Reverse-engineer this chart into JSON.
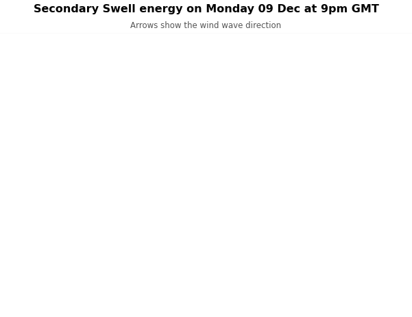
{
  "title": "Secondary Swell energy on Monday 09 Dec at 9pm GMT",
  "subtitle": "Arrows show the wind wave direction",
  "title_fontsize": 11.5,
  "subtitle_fontsize": 8.5,
  "fig_width": 6.01,
  "fig_height": 4.63,
  "dpi": 100,
  "background_color": "#ffffff",
  "map_bg": "#000000",
  "swell_cmap_colors": [
    "#000000",
    "#000020",
    "#000060",
    "#0000cc",
    "#0033ff",
    "#0088ff",
    "#00ccff",
    "#ffffff"
  ],
  "arrow_color": "#00e8e8",
  "lon_min": -65,
  "lon_max": 35,
  "lat_min": 45,
  "lat_max": 82,
  "arrows": [
    [
      0.04,
      0.52,
      -50
    ],
    [
      0.04,
      0.62,
      -55
    ],
    [
      0.04,
      0.72,
      -60
    ],
    [
      0.04,
      0.82,
      -58
    ],
    [
      0.04,
      0.92,
      -55
    ],
    [
      0.1,
      0.56,
      -50
    ],
    [
      0.1,
      0.66,
      -52
    ],
    [
      0.15,
      0.62,
      -50
    ],
    [
      0.15,
      0.72,
      -52
    ],
    [
      0.2,
      0.58,
      -48
    ],
    [
      0.2,
      0.68,
      -50
    ],
    [
      0.2,
      0.78,
      -50
    ],
    [
      0.25,
      0.64,
      -48
    ],
    [
      0.25,
      0.74,
      -48
    ],
    [
      0.25,
      0.84,
      -46
    ],
    [
      0.3,
      0.7,
      -46
    ],
    [
      0.3,
      0.8,
      -45
    ],
    [
      0.3,
      0.9,
      -44
    ],
    [
      0.35,
      0.74,
      -44
    ],
    [
      0.35,
      0.84,
      -43
    ],
    [
      0.35,
      0.94,
      -42
    ],
    [
      0.4,
      0.78,
      -42
    ],
    [
      0.4,
      0.88,
      -40
    ],
    [
      0.4,
      0.97,
      -39
    ],
    [
      0.46,
      0.82,
      -40
    ],
    [
      0.46,
      0.92,
      -38
    ],
    [
      0.52,
      0.86,
      -37
    ],
    [
      0.52,
      0.95,
      -36
    ],
    [
      0.58,
      0.84,
      -35
    ],
    [
      0.58,
      0.93,
      -34
    ],
    [
      0.64,
      0.82,
      -33
    ],
    [
      0.64,
      0.91,
      -32
    ],
    [
      0.7,
      0.79,
      -30
    ],
    [
      0.7,
      0.89,
      -29
    ],
    [
      0.42,
      0.52,
      -45
    ],
    [
      0.48,
      0.48,
      -43
    ],
    [
      0.54,
      0.5,
      -42
    ],
    [
      0.46,
      0.6,
      -44
    ],
    [
      0.52,
      0.58,
      -42
    ],
    [
      0.58,
      0.56,
      -40
    ],
    [
      0.54,
      0.64,
      -42
    ],
    [
      0.6,
      0.6,
      -40
    ],
    [
      0.64,
      0.58,
      -38
    ],
    [
      0.6,
      0.68,
      -38
    ],
    [
      0.66,
      0.64,
      -36
    ],
    [
      0.7,
      0.6,
      -35
    ],
    [
      0.68,
      0.72,
      -34
    ],
    [
      0.72,
      0.68,
      -32
    ],
    [
      0.76,
      0.64,
      -30
    ],
    [
      0.74,
      0.76,
      -30
    ],
    [
      0.78,
      0.72,
      -28
    ],
    [
      0.8,
      0.66,
      -26
    ],
    [
      0.8,
      0.55,
      -28
    ],
    [
      0.84,
      0.6,
      -26
    ],
    [
      0.88,
      0.55,
      -24
    ],
    [
      0.84,
      0.7,
      -24
    ],
    [
      0.88,
      0.65,
      -22
    ],
    [
      0.92,
      0.6,
      -20
    ],
    [
      0.88,
      0.75,
      -20
    ],
    [
      0.92,
      0.7,
      -18
    ],
    [
      0.96,
      0.65,
      -16
    ],
    [
      0.74,
      0.18,
      -32
    ],
    [
      0.78,
      0.14,
      -30
    ],
    [
      0.82,
      0.2,
      -28
    ],
    [
      0.86,
      0.16,
      -25
    ],
    [
      0.9,
      0.22,
      -22
    ],
    [
      0.94,
      0.17,
      -20
    ],
    [
      0.98,
      0.22,
      -18
    ],
    [
      0.6,
      0.1,
      -36
    ],
    [
      0.64,
      0.14,
      -34
    ],
    [
      0.68,
      0.08,
      -32
    ],
    [
      0.72,
      0.13,
      -30
    ],
    [
      0.5,
      0.35,
      -46
    ],
    [
      0.54,
      0.4,
      -44
    ],
    [
      0.47,
      0.43,
      -47
    ],
    [
      0.43,
      0.46,
      -48
    ]
  ]
}
